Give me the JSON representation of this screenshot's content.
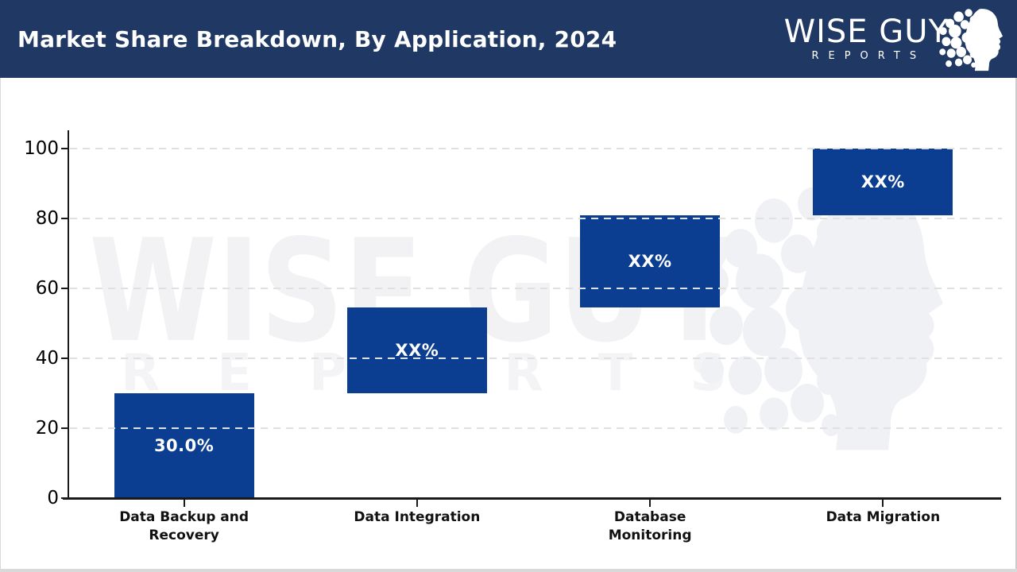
{
  "header": {
    "title": "Market Share Breakdown, By Application, 2024",
    "bg_color": "#1f3864",
    "logo": {
      "wordmark": "WISE GUY",
      "subtext": "REPORTS"
    }
  },
  "watermark": {
    "wordmark": "WISE GUY",
    "subtext": "REPORTS"
  },
  "chart_data": {
    "type": "bar",
    "subtype": "waterfall-segmented-columns",
    "title": "Market Share Breakdown, By Application, 2024",
    "categories": [
      "Data Backup and\nRecovery",
      "Data Integration",
      "Database\nMonitoring",
      "Data Migration"
    ],
    "segments": [
      {
        "category": "Data Backup and Recovery",
        "start": 0,
        "end": 30,
        "label": "30.0%"
      },
      {
        "category": "Data Integration",
        "start": 30,
        "end": 54.5,
        "label": "XX%"
      },
      {
        "category": "Database Monitoring",
        "start": 54.5,
        "end": 81,
        "label": "XX%"
      },
      {
        "category": "Data Migration",
        "start": 81,
        "end": 100,
        "label": "XX%"
      }
    ],
    "xlabel": "",
    "ylabel": "",
    "ylim": [
      0,
      105
    ],
    "yticks": [
      0,
      20,
      40,
      60,
      80,
      100
    ],
    "grid": "horizontal-dashed",
    "legend": "none",
    "bar_color": "#0b3d91",
    "bar_label_color": "#ffffff",
    "axis_color": "#1a1a1a",
    "grid_color": "#e0e0e0"
  }
}
